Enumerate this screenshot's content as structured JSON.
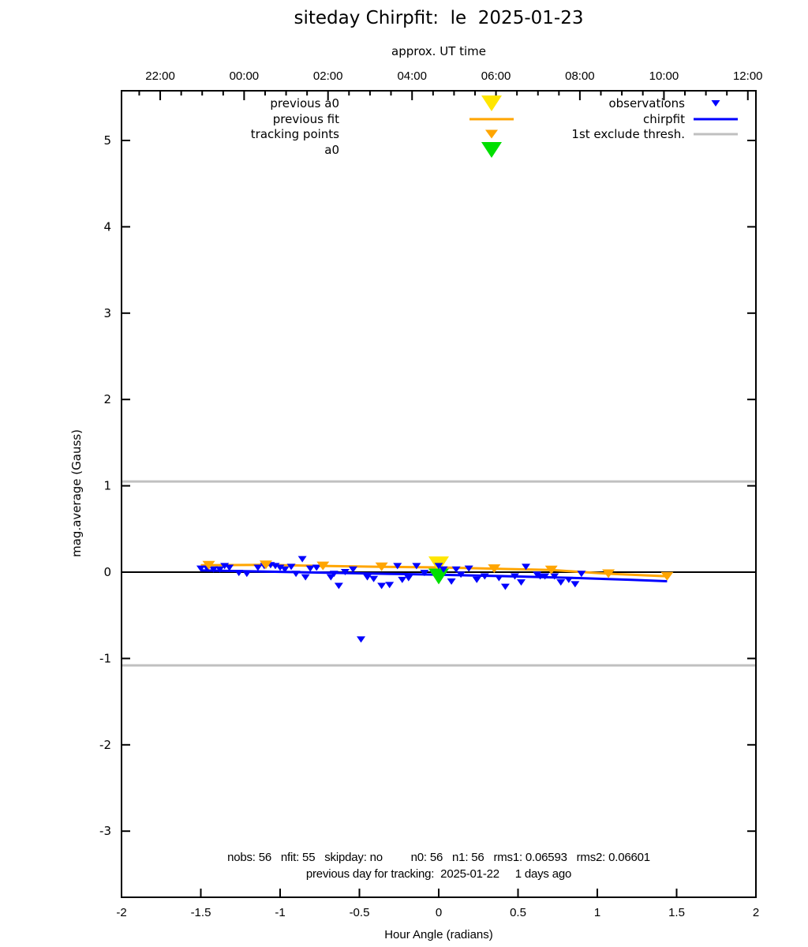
{
  "title": "siteday Chirpfit:  le  2025-01-23",
  "top_axis": {
    "label": "approx. UT time",
    "ticks": [
      {
        "label": "22:00",
        "ha": -1.756
      },
      {
        "label": "00:00",
        "ha": -1.227
      },
      {
        "label": "02:00",
        "ha": -0.698
      },
      {
        "label": "04:00",
        "ha": -0.168
      },
      {
        "label": "06:00",
        "ha": 0.361
      },
      {
        "label": "08:00",
        "ha": 0.89
      },
      {
        "label": "10:00",
        "ha": 1.42
      },
      {
        "label": "12:00",
        "ha": 1.949
      }
    ]
  },
  "bottom_axis": {
    "label": "Hour Angle (radians)",
    "ticks": [
      {
        "label": "-2",
        "ha": -2
      },
      {
        "label": "-1.5",
        "ha": -1.5
      },
      {
        "label": "-1",
        "ha": -1
      },
      {
        "label": "-0.5",
        "ha": -0.5
      },
      {
        "label": "0",
        "ha": 0
      },
      {
        "label": "0.5",
        "ha": 0.5
      },
      {
        "label": "1",
        "ha": 1
      },
      {
        "label": "1.5",
        "ha": 1.5
      },
      {
        "label": "2",
        "ha": 2
      }
    ]
  },
  "y_axis": {
    "label": "mag.average (Gauss)",
    "ticks": [
      {
        "label": "5",
        "v": 5
      },
      {
        "label": "4",
        "v": 4
      },
      {
        "label": "3",
        "v": 3
      },
      {
        "label": "2",
        "v": 2
      },
      {
        "label": "1",
        "v": 1
      },
      {
        "label": "0",
        "v": 0
      },
      {
        "label": "-1",
        "v": -1
      },
      {
        "label": "-2",
        "v": -2
      },
      {
        "label": "-3",
        "v": -3
      }
    ]
  },
  "colors": {
    "observations": "#0000FF",
    "chirpfit": "#0000FF",
    "previous_fit": "#FFA500",
    "tracking_points": "#FFA500",
    "previous_a0": "#FFE600",
    "a0": "#00DF00",
    "exclude_threshold": "#C0C0C0",
    "axis": "#000000"
  },
  "legend": {
    "left": [
      {
        "label": "previous a0",
        "series": "previous_a0",
        "swatch": "triangle-large",
        "color": "#FFE600"
      },
      {
        "label": "previous fit",
        "series": "previous_fit",
        "swatch": "line",
        "color": "#FFA500"
      },
      {
        "label": "tracking points",
        "series": "tracking_points",
        "swatch": "triangle-medium",
        "color": "#FFA500"
      },
      {
        "label": "a0",
        "series": "a0",
        "swatch": "triangle-large",
        "color": "#00DF00"
      }
    ],
    "right": [
      {
        "label": "observations",
        "series": "observations",
        "swatch": "triangle-small",
        "color": "#0000FF"
      },
      {
        "label": "chirpfit",
        "series": "chirpfit",
        "swatch": "line",
        "color": "#0000FF"
      },
      {
        "label": "1st exclude thresh.",
        "series": "exclude_threshold",
        "swatch": "line",
        "color": "#C0C0C0"
      }
    ]
  },
  "stats": {
    "line1": "nobs: 56   nfit: 55   skipday: no         n0: 56   n1: 56   rms1: 0.06593   rms2: 0.06601",
    "line2": "previous day for tracking:  2025-01-22     1 days ago",
    "values": {
      "nobs": 56,
      "nfit": 55,
      "skipday": "no",
      "n0": 56,
      "n1": 56,
      "rms1": 0.06593,
      "rms2": 0.06601,
      "previous_day_for_tracking": "2025-01-22",
      "days_ago": 1
    }
  },
  "chart_data": {
    "type": "scatter",
    "title": "siteday Chirpfit:  le  2025-01-23",
    "xlabel": "Hour Angle (radians)",
    "x2label": "approx. UT time",
    "ylabel": "mag.average (Gauss)",
    "xlim": [
      -2,
      2
    ],
    "ylim": [
      -3.77,
      5.58
    ],
    "grid": false,
    "zero_line": 0,
    "series": [
      {
        "id": "exclude_threshold",
        "name": "1st exclude thresh.",
        "type": "hlines",
        "color": "#C0C0C0",
        "values": [
          1.05,
          -1.08
        ]
      },
      {
        "id": "previous_fit",
        "name": "previous fit",
        "type": "line",
        "color": "#FFA500",
        "points": [
          [
            -1.5,
            0.08
          ],
          [
            -1.09,
            0.085
          ],
          [
            -0.73,
            0.072
          ],
          [
            -0.36,
            0.062
          ],
          [
            0.0,
            0.055
          ],
          [
            0.35,
            0.04
          ],
          [
            0.71,
            0.025
          ],
          [
            1.07,
            -0.018
          ],
          [
            1.44,
            -0.048
          ]
        ]
      },
      {
        "id": "chirpfit",
        "name": "chirpfit",
        "type": "line",
        "color": "#0000FF",
        "points": [
          [
            -1.5,
            0.02
          ],
          [
            -1.2,
            0.01
          ],
          [
            -0.9,
            0.0
          ],
          [
            -0.6,
            -0.01
          ],
          [
            -0.3,
            -0.02
          ],
          [
            0.0,
            -0.03
          ],
          [
            0.3,
            -0.042
          ],
          [
            0.6,
            -0.055
          ],
          [
            0.9,
            -0.07
          ],
          [
            1.2,
            -0.088
          ],
          [
            1.44,
            -0.105
          ]
        ]
      },
      {
        "id": "previous_a0",
        "name": "previous a0",
        "type": "points",
        "color": "#FFE600",
        "points": [
          [
            0.0,
            0.09
          ]
        ]
      },
      {
        "id": "a0",
        "name": "a0",
        "type": "points",
        "color": "#00DF00",
        "points": [
          [
            0.0,
            -0.05
          ]
        ]
      },
      {
        "id": "observations",
        "name": "observations",
        "type": "points",
        "color": "#0000FF",
        "points": [
          [
            -1.5,
            0.04
          ],
          [
            -1.46,
            0.04
          ],
          [
            -1.42,
            0.03
          ],
          [
            -1.38,
            0.03
          ],
          [
            -1.35,
            0.07
          ],
          [
            -1.32,
            0.05
          ],
          [
            -1.26,
            -0.01
          ],
          [
            -1.21,
            -0.02
          ],
          [
            -1.14,
            0.05
          ],
          [
            -1.1,
            0.07
          ],
          [
            -1.06,
            0.08
          ],
          [
            -1.03,
            0.07
          ],
          [
            -1.0,
            0.05
          ],
          [
            -0.97,
            0.03
          ],
          [
            -0.93,
            0.06
          ],
          [
            -0.9,
            -0.02
          ],
          [
            -0.86,
            0.15
          ],
          [
            -0.84,
            -0.06
          ],
          [
            -0.81,
            0.04
          ],
          [
            -0.77,
            0.05
          ],
          [
            -0.68,
            -0.06
          ],
          [
            -0.66,
            -0.02
          ],
          [
            -0.63,
            -0.16
          ],
          [
            -0.59,
            0.0
          ],
          [
            -0.54,
            0.03
          ],
          [
            -0.49,
            -0.78
          ],
          [
            -0.45,
            -0.06
          ],
          [
            -0.41,
            -0.08
          ],
          [
            -0.36,
            -0.16
          ],
          [
            -0.31,
            -0.15
          ],
          [
            -0.26,
            0.07
          ],
          [
            -0.23,
            -0.09
          ],
          [
            -0.19,
            -0.07
          ],
          [
            -0.14,
            0.07
          ],
          [
            -0.09,
            -0.01
          ],
          [
            0.0,
            0.07
          ],
          [
            0.03,
            0.03
          ],
          [
            0.08,
            -0.11
          ],
          [
            0.11,
            0.03
          ],
          [
            0.14,
            -0.03
          ],
          [
            0.19,
            0.04
          ],
          [
            0.24,
            -0.09
          ],
          [
            0.29,
            -0.05
          ],
          [
            0.38,
            -0.07
          ],
          [
            0.42,
            -0.17
          ],
          [
            0.48,
            -0.05
          ],
          [
            0.52,
            -0.12
          ],
          [
            0.55,
            0.06
          ],
          [
            0.62,
            -0.03
          ],
          [
            0.64,
            -0.05
          ],
          [
            0.67,
            -0.05
          ],
          [
            0.73,
            -0.05
          ],
          [
            0.77,
            -0.12
          ],
          [
            0.82,
            -0.09
          ],
          [
            0.86,
            -0.14
          ],
          [
            0.9,
            -0.02
          ]
        ]
      },
      {
        "id": "tracking_points",
        "name": "tracking points",
        "type": "points",
        "color": "#FFA500",
        "points": [
          [
            -1.45,
            0.08
          ],
          [
            -1.09,
            0.085
          ],
          [
            -0.73,
            0.072
          ],
          [
            -0.36,
            0.062
          ],
          [
            0.35,
            0.04
          ],
          [
            0.71,
            0.025
          ],
          [
            1.07,
            -0.018
          ],
          [
            1.44,
            -0.048
          ]
        ]
      }
    ]
  }
}
